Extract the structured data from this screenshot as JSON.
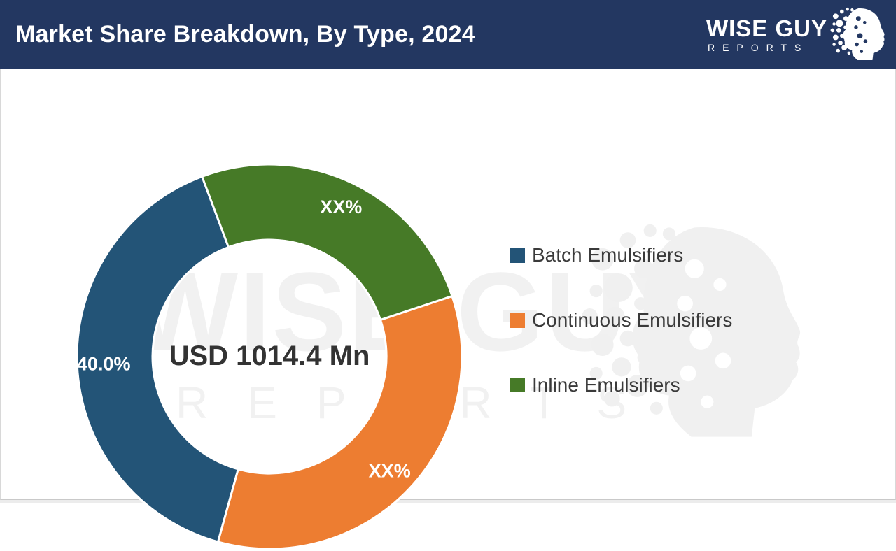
{
  "header": {
    "title": "Market Share Breakdown, By Type, 2024",
    "bg_color": "#233761",
    "logo": {
      "line1": "WISE GUY",
      "line2": "REPORTS"
    }
  },
  "chart_data": {
    "type": "pie",
    "subtype": "donut",
    "title": "Market Share Breakdown, By Type, 2024",
    "center_label": "USD 1014.4 Mn",
    "start_angle_deg": 110.5,
    "direction": "counterclockwise",
    "legend_position": "right",
    "series": [
      {
        "name": "Batch Emulsifiers",
        "value_pct": 40.0,
        "label": "40.0%",
        "color": "#235477"
      },
      {
        "name": "Continuous Emulsifiers",
        "value_pct": 34.4,
        "label": "XX%",
        "color": "#ED7D31"
      },
      {
        "name": "Inline Emulsifiers",
        "value_pct": 25.6,
        "label": "XX%",
        "color": "#467A27"
      }
    ]
  },
  "watermark": {
    "line1": "WISE GUY",
    "line2": "REPORTS"
  }
}
